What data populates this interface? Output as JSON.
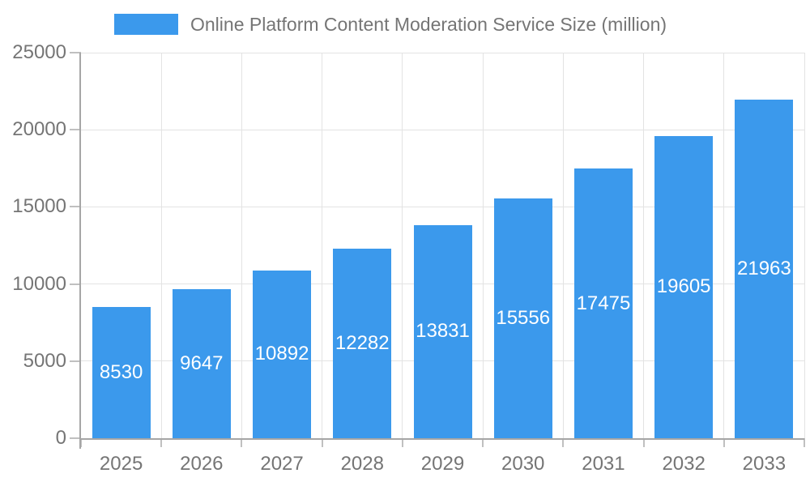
{
  "chart_data": {
    "type": "bar",
    "title": "Online Platform Content Moderation Service Size (million)",
    "categories": [
      "2025",
      "2026",
      "2027",
      "2028",
      "2029",
      "2030",
      "2031",
      "2032",
      "2033"
    ],
    "values": [
      8530,
      9647,
      10892,
      12282,
      13831,
      15556,
      17475,
      19605,
      21963
    ],
    "xlabel": "",
    "ylabel": "",
    "ylim": [
      0,
      25000
    ],
    "ytick_step": 5000,
    "ytick_labels": [
      "0",
      "5000",
      "10000",
      "15000",
      "20000",
      "25000"
    ],
    "grid": true,
    "legend_position": "top",
    "value_labels_position": "inside-center",
    "colors": {
      "bar": "#3B99EC",
      "value_label": "#ffffff",
      "tick_label": "#757575",
      "legend_text": "#757575",
      "gridline": "#e3e3e3",
      "axis_line": "#a6a6a6",
      "tick_mark": "#c0c0c0",
      "background": "#ffffff"
    }
  }
}
